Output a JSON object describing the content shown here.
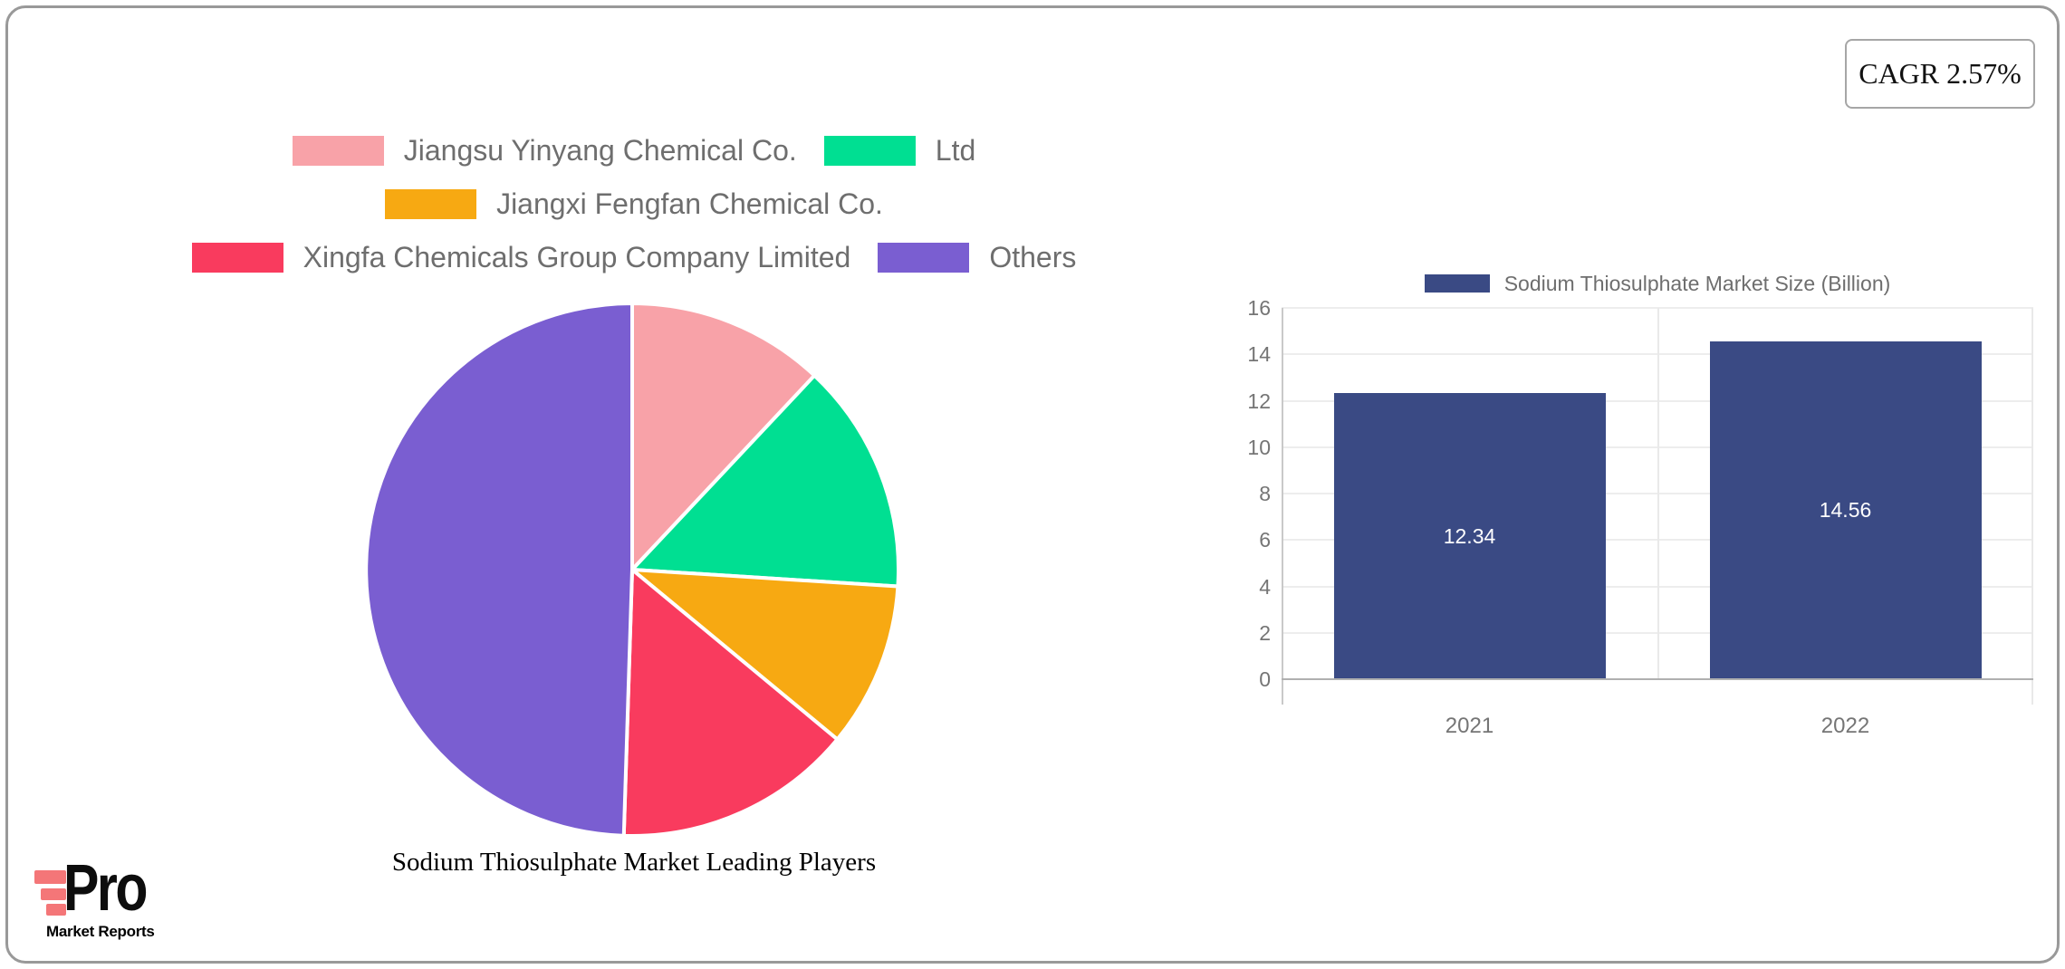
{
  "cagr_badge": "CAGR 2.57%",
  "logo": {
    "brand": "Pro",
    "subtitle": "Market Reports",
    "bar_color": "#f47678"
  },
  "colors": {
    "frame_border": "#999999",
    "legend_text": "#6e6e6e",
    "tick_text": "#757575"
  },
  "chart_data": [
    {
      "type": "pie",
      "title": "Sodium Thiosulphate Market Leading Players",
      "labels": [
        "Jiangsu Yinyang Chemical Co.",
        "Ltd",
        "Jiangxi Fengfan Chemical Co.",
        "Xingfa Chemicals Group Company Limited",
        "Others"
      ],
      "values_percent": [
        12,
        14,
        10,
        14.5,
        49.5
      ],
      "colors": [
        "#f8a2a8",
        "#00df92",
        "#f7a912",
        "#f93b5e",
        "#7a5ed1"
      ],
      "legend_position": "top",
      "legend_rows": [
        [
          0,
          1
        ],
        [
          2
        ],
        [
          3,
          4
        ]
      ],
      "start_angle_deg": 0,
      "direction": "clockwise",
      "slice_border_color": "#ffffff"
    },
    {
      "type": "bar",
      "series_name": "Sodium Thiosulphate Market Size (Billion)",
      "categories": [
        "2021",
        "2022"
      ],
      "values": [
        12.34,
        14.56
      ],
      "value_labels": [
        "12.34",
        "14.56"
      ],
      "bar_color": "#3a4a84",
      "value_label_color": "#ffffff",
      "ylim": [
        0,
        16
      ],
      "ytick_step": 2,
      "yticks": [
        0,
        2,
        4,
        6,
        8,
        10,
        12,
        14,
        16
      ],
      "grid": true,
      "legend_position": "top"
    }
  ]
}
